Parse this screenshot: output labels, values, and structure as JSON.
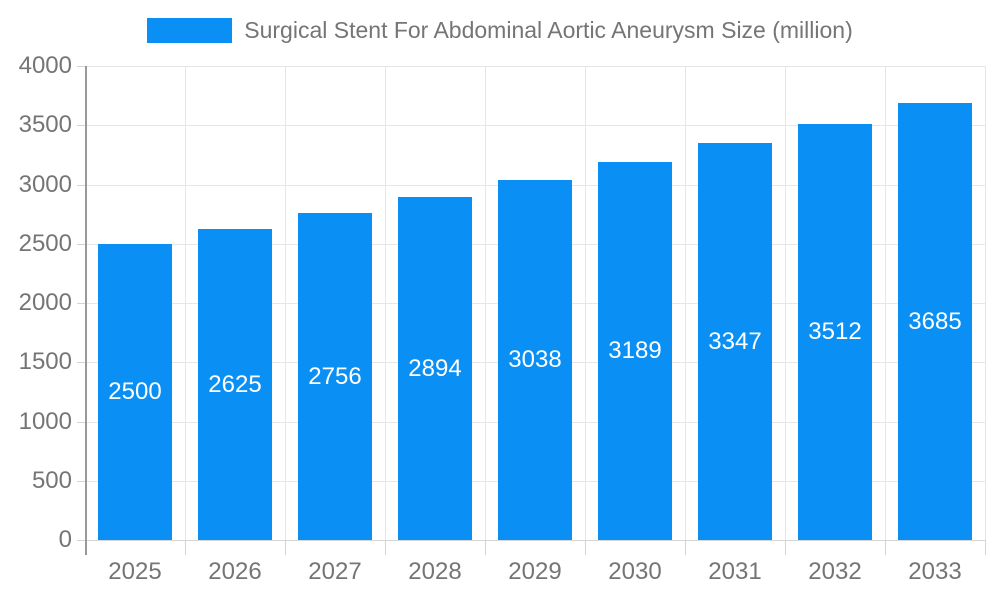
{
  "legend": {
    "label": "Surgical Stent For Abdominal Aortic Aneurysm Size (million)"
  },
  "chart_data": {
    "type": "bar",
    "title": "Surgical Stent For Abdominal Aortic Aneurysm Size (million)",
    "categories": [
      "2025",
      "2026",
      "2027",
      "2028",
      "2029",
      "2030",
      "2031",
      "2032",
      "2033"
    ],
    "values": [
      2500,
      2625,
      2756,
      2894,
      3038,
      3189,
      3347,
      3512,
      3685
    ],
    "xlabel": "",
    "ylabel": "",
    "ylim": [
      0,
      4000
    ],
    "yticks": [
      0,
      500,
      1000,
      1500,
      2000,
      2500,
      3000,
      3500,
      4000
    ],
    "grid": true,
    "legend_position": "top",
    "value_labels": "inside-center",
    "colors": {
      "bar": "#0a8ff4",
      "bar_label": "#ffffff",
      "axis_text": "#757575",
      "gridline": "#e6e6e6",
      "axis_line": "#999999",
      "tick": "#d4d4d4",
      "background": "#ffffff"
    }
  }
}
